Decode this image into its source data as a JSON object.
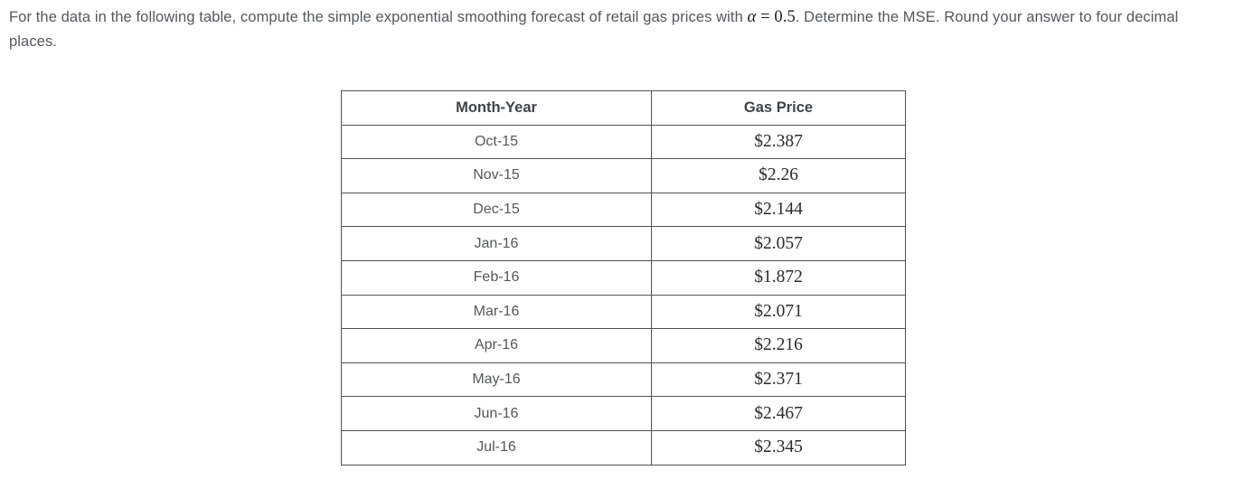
{
  "question": {
    "text_before_math": "For the data in the following table, compute the simple exponential smoothing forecast of retail gas prices with ",
    "math_alpha": "α",
    "math_equals_value": " = 0.5",
    "text_after_math": ". Determine the MSE. Round your answer to four decimal places."
  },
  "table": {
    "headers": [
      "Month-Year",
      "Gas Price"
    ],
    "rows": [
      {
        "month": "Oct-15",
        "price": "$2.387"
      },
      {
        "month": "Nov-15",
        "price": "$2.26"
      },
      {
        "month": "Dec-15",
        "price": "$2.144"
      },
      {
        "month": "Jan-16",
        "price": "$2.057"
      },
      {
        "month": "Feb-16",
        "price": "$1.872"
      },
      {
        "month": "Mar-16",
        "price": "$2.071"
      },
      {
        "month": "Apr-16",
        "price": "$2.216"
      },
      {
        "month": "May-16",
        "price": "$2.371"
      },
      {
        "month": "Jun-16",
        "price": "$2.467"
      },
      {
        "month": "Jul-16",
        "price": "$2.345"
      }
    ]
  },
  "colors": {
    "question_text": "#54585c",
    "math_text": "#1f1f1f",
    "table_border": "#4f5255",
    "header_text": "#3f4347",
    "month_text": "#54585a",
    "price_text": "#2b2b2b",
    "background": "#ffffff"
  }
}
